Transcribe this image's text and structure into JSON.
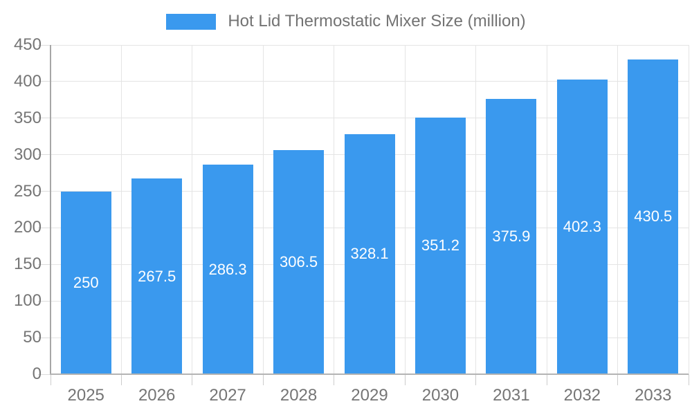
{
  "legend": {
    "label": "Hot Lid Thermostatic Mixer Size (million)"
  },
  "chart_data": {
    "type": "bar",
    "title": "Hot Lid Thermostatic Mixer Size (million)",
    "categories": [
      "2025",
      "2026",
      "2027",
      "2028",
      "2029",
      "2030",
      "2031",
      "2032",
      "2033"
    ],
    "series": [
      {
        "name": "Hot Lid Thermostatic Mixer Size (million)",
        "values": [
          250,
          267.5,
          286.3,
          306.5,
          328.1,
          351.2,
          375.9,
          402.3,
          430.5
        ]
      }
    ],
    "data_labels": [
      "250",
      "267.5",
      "286.3",
      "306.5",
      "328.1",
      "351.2",
      "375.9",
      "402.3",
      "430.5"
    ],
    "xlabel": "",
    "ylabel": "",
    "ylim": [
      0,
      450
    ],
    "yticks": [
      0,
      50,
      100,
      150,
      200,
      250,
      300,
      350,
      400,
      450
    ],
    "grid": true,
    "legend_position": "top",
    "colors": {
      "bar": "#3A99EE",
      "bar_label_text": "#ffffff",
      "axis_text": "#757575",
      "legend_text": "#737373",
      "y_axis_line": "#a6a6a6",
      "x_axis_line": "#b3b3b3",
      "gridline": "#e4e4e4",
      "background": "#ffffff"
    }
  }
}
